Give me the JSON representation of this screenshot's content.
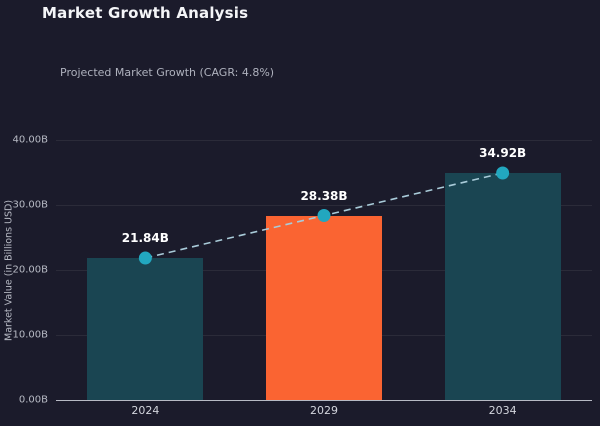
{
  "chart_data": {
    "type": "bar",
    "title": "Market Growth Analysis",
    "subtitle": "Projected Market Growth (CAGR: 4.8%)",
    "categories": [
      "2024",
      "2029",
      "2034"
    ],
    "values": [
      21.84,
      28.38,
      34.92
    ],
    "value_labels": [
      "21.84B",
      "28.38B",
      "34.92B"
    ],
    "xlabel": "",
    "ylabel": "Market Value (in Billions USD)",
    "ylim": [
      0,
      40
    ],
    "yticks": [
      0,
      10,
      20,
      30,
      40
    ],
    "ytick_labels": [
      "0.00B",
      "10.00B",
      "20.00B",
      "30.00B",
      "40.00B"
    ],
    "bar_colors": [
      "#1a4552",
      "#fa6432",
      "#1a4552"
    ],
    "marker_color": "#22a7bf",
    "trend_line_color": "#a9cbd9",
    "trend_style": "dashed",
    "background": "#1b1b2b",
    "grid": "faint-horizontal",
    "legend": false,
    "cagr": "4.8%"
  }
}
